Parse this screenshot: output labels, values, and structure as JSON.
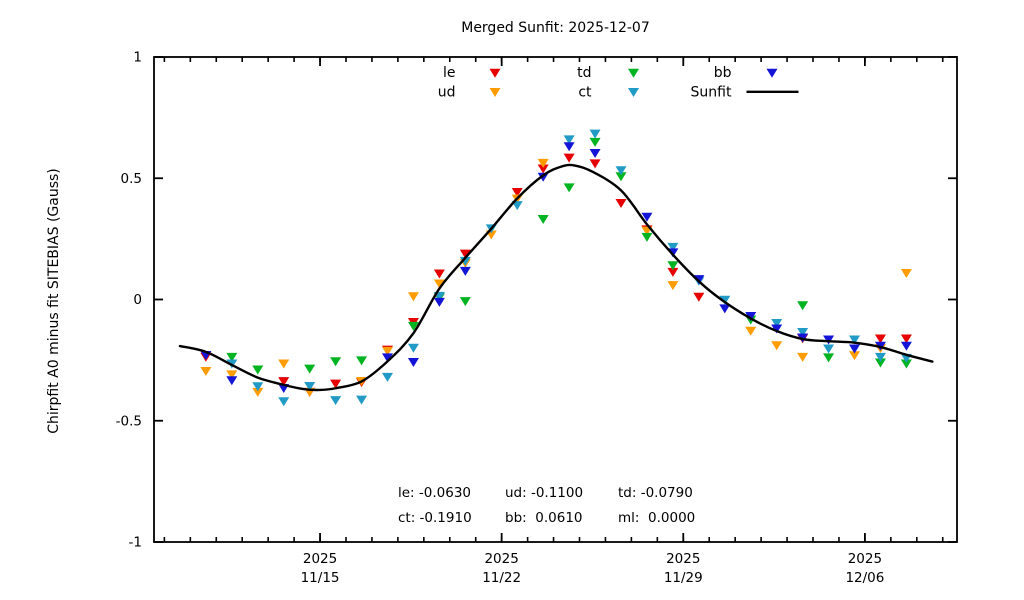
{
  "chart_data": {
    "type": "scatter",
    "title": "Merged Sunfit: 2025-12-07",
    "ylabel": "Chirpfit A0 minus fit SITEBIAS (Gauss)",
    "ylim": [
      -1,
      1
    ],
    "yticks": [
      {
        "value": 1,
        "label": "1"
      },
      {
        "value": 0.5,
        "label": "0.5"
      },
      {
        "value": 0,
        "label": "0"
      },
      {
        "value": -0.5,
        "label": "-0.5"
      },
      {
        "value": -1,
        "label": "-1"
      }
    ],
    "x_range_days": [
      -6.4,
      24.55
    ],
    "x_minor_tick_step_days": 1,
    "x_major_ticks": [
      {
        "day": 0,
        "year": "2025",
        "date": "11/15"
      },
      {
        "day": 7,
        "year": "2025",
        "date": "11/22"
      },
      {
        "day": 14,
        "year": "2025",
        "date": "11/29"
      },
      {
        "day": 21,
        "year": "2025",
        "date": "12/06"
      }
    ],
    "series": [
      {
        "name": "le",
        "color": "#e60000",
        "marker": "triangle-down",
        "points": [
          [
            -4.4,
            -0.235
          ],
          [
            -1.4,
            -0.336
          ],
          [
            -0.4,
            -0.38
          ],
          [
            0.6,
            -0.346
          ],
          [
            1.6,
            -0.34
          ],
          [
            2.6,
            -0.206
          ],
          [
            3.6,
            -0.092
          ],
          [
            4.6,
            0.108
          ],
          [
            5.6,
            0.19
          ],
          [
            7.6,
            0.444
          ],
          [
            8.6,
            0.541
          ],
          [
            9.6,
            0.586
          ],
          [
            10.6,
            0.562
          ],
          [
            11.6,
            0.399
          ],
          [
            12.6,
            0.29
          ],
          [
            13.6,
            0.115
          ],
          [
            14.6,
            0.012
          ],
          [
            18.6,
            -0.159
          ],
          [
            21.6,
            -0.16
          ],
          [
            22.6,
            -0.16
          ]
        ]
      },
      {
        "name": "ud",
        "color": "#ff9c00",
        "marker": "triangle-down",
        "points": [
          [
            -4.4,
            -0.294
          ],
          [
            -3.4,
            -0.308
          ],
          [
            -2.4,
            -0.38
          ],
          [
            -1.4,
            -0.263
          ],
          [
            -0.4,
            -0.38
          ],
          [
            1.6,
            -0.335
          ],
          [
            2.6,
            -0.211
          ],
          [
            3.6,
            0.014
          ],
          [
            4.6,
            0.067
          ],
          [
            5.6,
            0.152
          ],
          [
            6.6,
            0.269
          ],
          [
            7.6,
            0.417
          ],
          [
            8.6,
            0.564
          ],
          [
            12.6,
            0.285
          ],
          [
            13.6,
            0.06
          ],
          [
            16.6,
            -0.128
          ],
          [
            17.6,
            -0.188
          ],
          [
            18.6,
            -0.236
          ],
          [
            20.6,
            -0.229
          ],
          [
            21.6,
            -0.199
          ],
          [
            22.6,
            0.11
          ]
        ]
      },
      {
        "name": "td",
        "color": "#00b321",
        "marker": "triangle-down",
        "points": [
          [
            -3.4,
            -0.236
          ],
          [
            -2.4,
            -0.288
          ],
          [
            -0.4,
            -0.284
          ],
          [
            0.6,
            -0.254
          ],
          [
            1.6,
            -0.25
          ],
          [
            3.6,
            -0.108
          ],
          [
            4.6,
            0.01
          ],
          [
            5.6,
            -0.006
          ],
          [
            8.6,
            0.333
          ],
          [
            9.6,
            0.463
          ],
          [
            10.6,
            0.651
          ],
          [
            11.6,
            0.509
          ],
          [
            12.6,
            0.259
          ],
          [
            13.6,
            0.142
          ],
          [
            16.6,
            -0.082
          ],
          [
            18.6,
            -0.023
          ],
          [
            19.6,
            -0.238
          ],
          [
            21.6,
            -0.259
          ],
          [
            22.6,
            -0.263
          ]
        ]
      },
      {
        "name": "ct",
        "color": "#219bc6",
        "marker": "triangle-down",
        "points": [
          [
            -3.4,
            -0.263
          ],
          [
            -2.4,
            -0.357
          ],
          [
            -1.4,
            -0.419
          ],
          [
            -0.4,
            -0.356
          ],
          [
            0.6,
            -0.414
          ],
          [
            1.6,
            -0.412
          ],
          [
            2.6,
            -0.318
          ],
          [
            3.6,
            -0.198
          ],
          [
            4.6,
            0.016
          ],
          [
            5.6,
            0.16
          ],
          [
            6.6,
            0.294
          ],
          [
            7.6,
            0.39
          ],
          [
            9.6,
            0.661
          ],
          [
            10.6,
            0.685
          ],
          [
            11.6,
            0.534
          ],
          [
            13.6,
            0.218
          ],
          [
            14.6,
            0.078
          ],
          [
            15.6,
            0.0
          ],
          [
            17.6,
            -0.096
          ],
          [
            18.6,
            -0.133
          ],
          [
            19.6,
            -0.201
          ],
          [
            20.6,
            -0.164
          ],
          [
            21.6,
            -0.236
          ],
          [
            22.6,
            -0.24
          ]
        ]
      },
      {
        "name": "bb",
        "color": "#1414d7",
        "marker": "triangle-down",
        "points": [
          [
            -4.4,
            -0.228
          ],
          [
            -3.4,
            -0.332
          ],
          [
            -1.4,
            -0.364
          ],
          [
            2.6,
            -0.238
          ],
          [
            3.6,
            -0.257
          ],
          [
            4.6,
            -0.009
          ],
          [
            5.6,
            0.119
          ],
          [
            8.6,
            0.507
          ],
          [
            9.6,
            0.633
          ],
          [
            10.6,
            0.605
          ],
          [
            12.6,
            0.342
          ],
          [
            13.6,
            0.195
          ],
          [
            14.6,
            0.085
          ],
          [
            15.6,
            -0.036
          ],
          [
            16.6,
            -0.067
          ],
          [
            17.6,
            -0.119
          ],
          [
            18.6,
            -0.156
          ],
          [
            19.6,
            -0.164
          ],
          [
            20.6,
            -0.201
          ],
          [
            21.6,
            -0.19
          ],
          [
            22.6,
            -0.19
          ]
        ]
      }
    ],
    "fit_line": {
      "name": "Sunfit",
      "color": "#000000",
      "points": [
        [
          -5.4,
          -0.192
        ],
        [
          -4.4,
          -0.216
        ],
        [
          -3.4,
          -0.27
        ],
        [
          -2.4,
          -0.322
        ],
        [
          -1.4,
          -0.352
        ],
        [
          -0.6,
          -0.37
        ],
        [
          0.0,
          -0.373
        ],
        [
          0.6,
          -0.366
        ],
        [
          1.6,
          -0.338
        ],
        [
          2.6,
          -0.255
        ],
        [
          3.6,
          -0.139
        ],
        [
          4.6,
          0.045
        ],
        [
          5.6,
          0.172
        ],
        [
          6.6,
          0.292
        ],
        [
          7.6,
          0.417
        ],
        [
          8.6,
          0.512
        ],
        [
          9.3,
          0.548
        ],
        [
          9.8,
          0.553
        ],
        [
          10.5,
          0.527
        ],
        [
          11.6,
          0.45
        ],
        [
          12.6,
          0.31
        ],
        [
          13.6,
          0.185
        ],
        [
          14.6,
          0.075
        ],
        [
          15.5,
          -0.003
        ],
        [
          16.6,
          -0.078
        ],
        [
          17.6,
          -0.13
        ],
        [
          18.6,
          -0.163
        ],
        [
          19.6,
          -0.172
        ],
        [
          20.6,
          -0.178
        ],
        [
          21.6,
          -0.196
        ],
        [
          22.6,
          -0.228
        ],
        [
          23.6,
          -0.256
        ]
      ]
    },
    "legend": {
      "rows": [
        [
          {
            "label": "le",
            "series": "le"
          },
          {
            "label": "td",
            "series": "td"
          },
          {
            "label": "bb",
            "series": "bb"
          }
        ],
        [
          {
            "label": "ud",
            "series": "ud"
          },
          {
            "label": "ct",
            "series": "ct"
          },
          {
            "label": "Sunfit",
            "series": "fit_line"
          }
        ]
      ]
    },
    "stats_rows": [
      [
        "le: -0.0630",
        "ud: -0.1100",
        "td: -0.0790"
      ],
      [
        "ct: -0.1910",
        "bb:  0.0610",
        "ml:  0.0000"
      ]
    ]
  }
}
